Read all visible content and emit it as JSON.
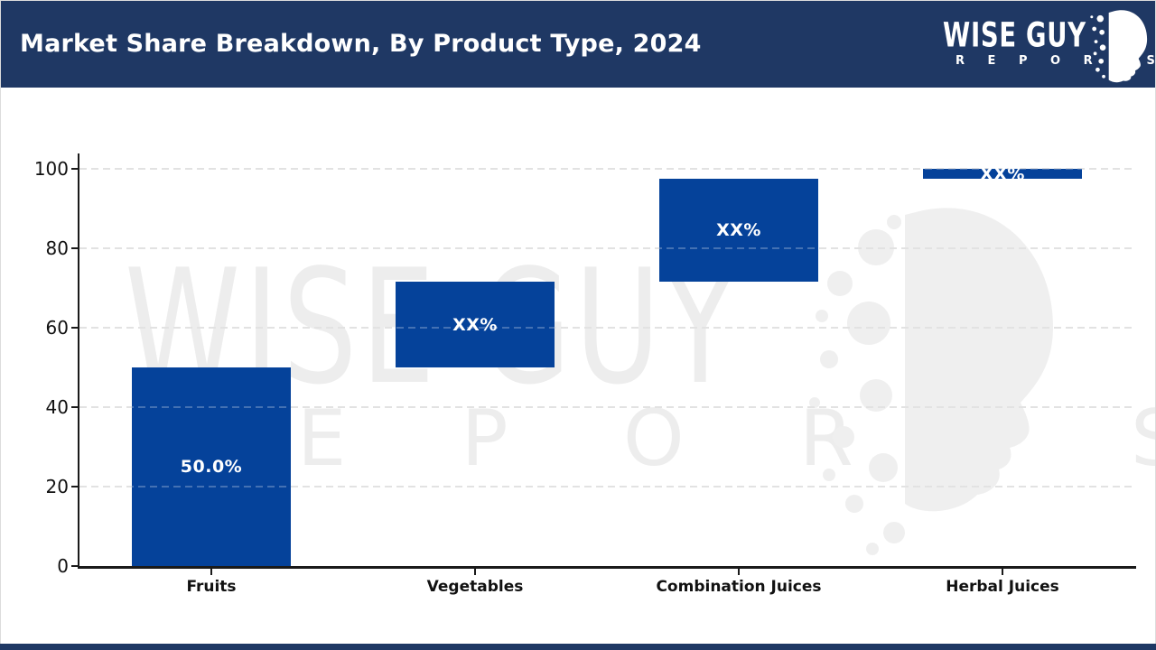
{
  "header": {
    "title": "Market Share Breakdown, By Product Type, 2024",
    "background_color": "#1f3864",
    "logo": {
      "line1": "WISE GUY",
      "line2": "R E P O R T S"
    }
  },
  "watermark": {
    "line1": "WISE GUY",
    "line2": "R E P O R T S",
    "color": "#ededed"
  },
  "footer": {
    "background_color": "#1f3864"
  },
  "chart_data": {
    "type": "bar",
    "subtype": "waterfall",
    "title": "Market Share Breakdown, By Product Type, 2024",
    "categories": [
      "Fruits",
      "Vegetables",
      "Combination Juices",
      "Herbal Juices"
    ],
    "segments": [
      {
        "category": "Fruits",
        "start": 0,
        "end": 50,
        "label": "50.0%"
      },
      {
        "category": "Vegetables",
        "start": 50,
        "end": 71.5,
        "label": "XX%"
      },
      {
        "category": "Combination Juices",
        "start": 71.5,
        "end": 97.5,
        "label": "XX%"
      },
      {
        "category": "Herbal Juices",
        "start": 97.5,
        "end": 100,
        "label": "XX%"
      }
    ],
    "y_ticks": [
      0,
      20,
      40,
      60,
      80,
      100
    ],
    "ylim": [
      0,
      104
    ],
    "xlabel": "",
    "ylabel": "",
    "bar_color": "#05429a",
    "bar_label_color": "#ffffff",
    "grid": "dashed-horizontal",
    "grid_color": "#d9d9d9",
    "legend": "none"
  }
}
